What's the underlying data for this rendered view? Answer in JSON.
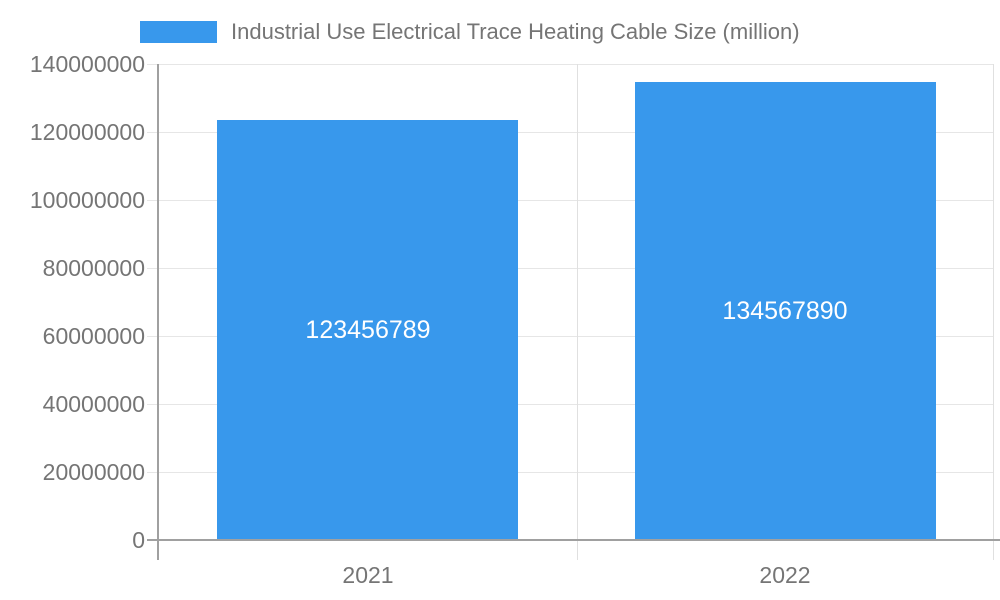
{
  "legend": {
    "label": "Industrial Use Electrical Trace Heating Cable Size (million)"
  },
  "colors": {
    "bar": "#3898ec",
    "axis_label": "#757575",
    "bar_label": "#ffffff",
    "grid": "#e6e6e6",
    "grid_vertical": "#e0e0e0",
    "axis_line": "#a0a0a0",
    "background": "#ffffff"
  },
  "chart_data": {
    "type": "bar",
    "title": "Industrial Use Electrical Trace Heating Cable Size (million)",
    "categories": [
      "2021",
      "2022"
    ],
    "values": [
      123456789,
      134567890
    ],
    "bar_labels": [
      "123456789",
      "134567890"
    ],
    "xlabel": "",
    "ylabel": "",
    "ylim": [
      0,
      140000000
    ],
    "ytick_interval": 20000000,
    "yticks": [
      0,
      20000000,
      40000000,
      60000000,
      80000000,
      100000000,
      120000000,
      140000000
    ],
    "grid": true,
    "legend_position": "top-left"
  }
}
